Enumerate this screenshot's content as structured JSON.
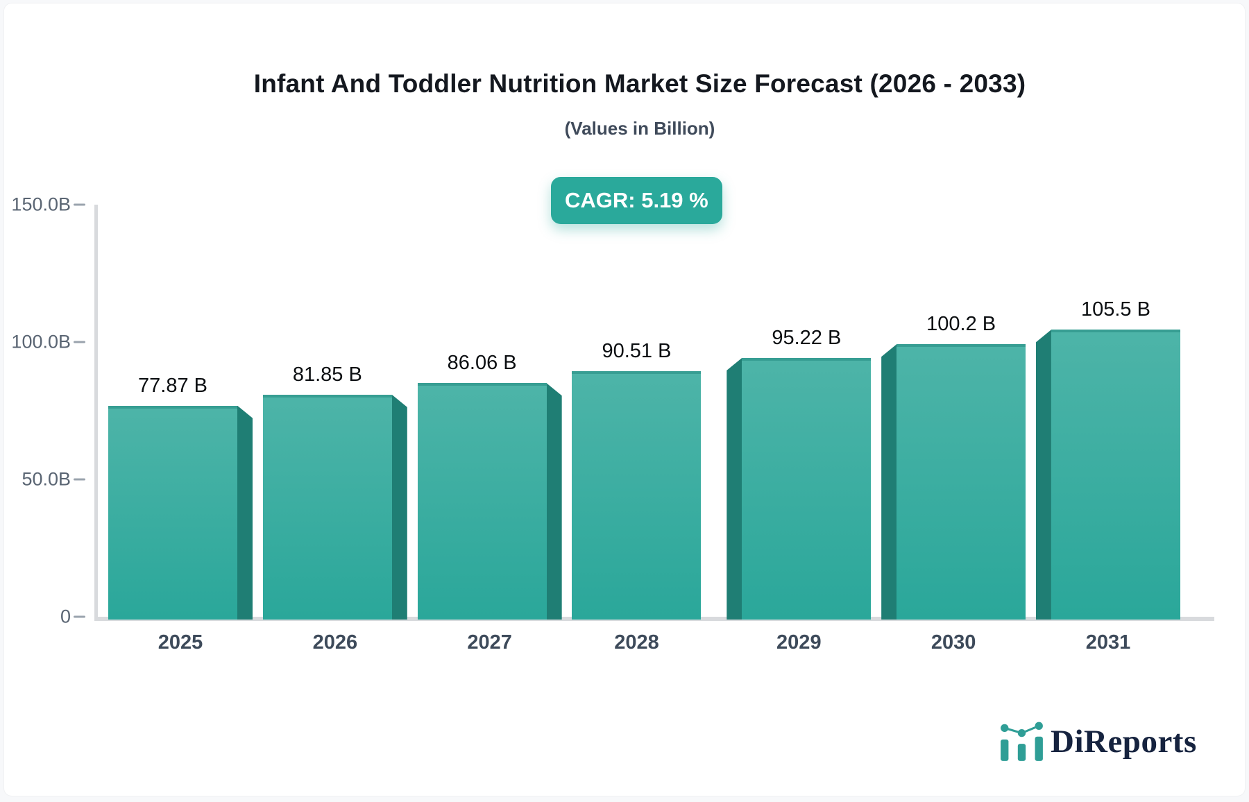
{
  "page": {
    "title": "Infant And Toddler Nutrition Market Size Forecast (2026 - 2033)",
    "subtitle": "(Values in Billion)",
    "cagr_label": "CAGR: 5.19 %"
  },
  "colors": {
    "page_bg": "#f7f8fa",
    "card_bg": "#ffffff",
    "accent_teal": "#2aa99b",
    "bar_gradient_top": "#4db4a8",
    "bar_gradient_bottom": "#2aa79a",
    "bar_side_dark": "#1f7e74",
    "bar_top_edge": "#379e93",
    "axis_line": "#d8dadd",
    "tick": "#9aa3ad",
    "y_label": "#5a6573",
    "x_label": "#3d4a5a",
    "value_label": "#0b0e11",
    "title": "#14181f",
    "subtitle": "#3f4a5a",
    "badge_bg": "#2aa99b",
    "badge_text": "#ffffff",
    "logo_text": "#16233f",
    "logo_icon": "#2f9e96"
  },
  "chart_data": {
    "type": "bar",
    "title": "Infant And Toddler Nutrition Market Size Forecast (2026 - 2033)",
    "subtitle": "(Values in Billion)",
    "annotation": "CAGR: 5.19 %",
    "categories": [
      "2025",
      "2026",
      "2027",
      "2028",
      "2029",
      "2030",
      "2031"
    ],
    "values": [
      77.87,
      81.85,
      86.06,
      90.51,
      95.22,
      100.2,
      105.5
    ],
    "value_labels": [
      "77.87 B",
      "81.85 B",
      "86.06 B",
      "90.51 B",
      "95.22 B",
      "100.2 B",
      "105.5 B"
    ],
    "ylim": [
      0,
      150
    ],
    "y_tick_values": [
      150,
      100,
      50,
      0
    ],
    "y_tick_labels": [
      "150.0B",
      "100.0B",
      "50.0B",
      "0"
    ],
    "grid": false,
    "legend": false,
    "style": "3d-perspective-center"
  },
  "logo": {
    "text": "DiReports",
    "icon": "bar-chart-logo-icon"
  }
}
